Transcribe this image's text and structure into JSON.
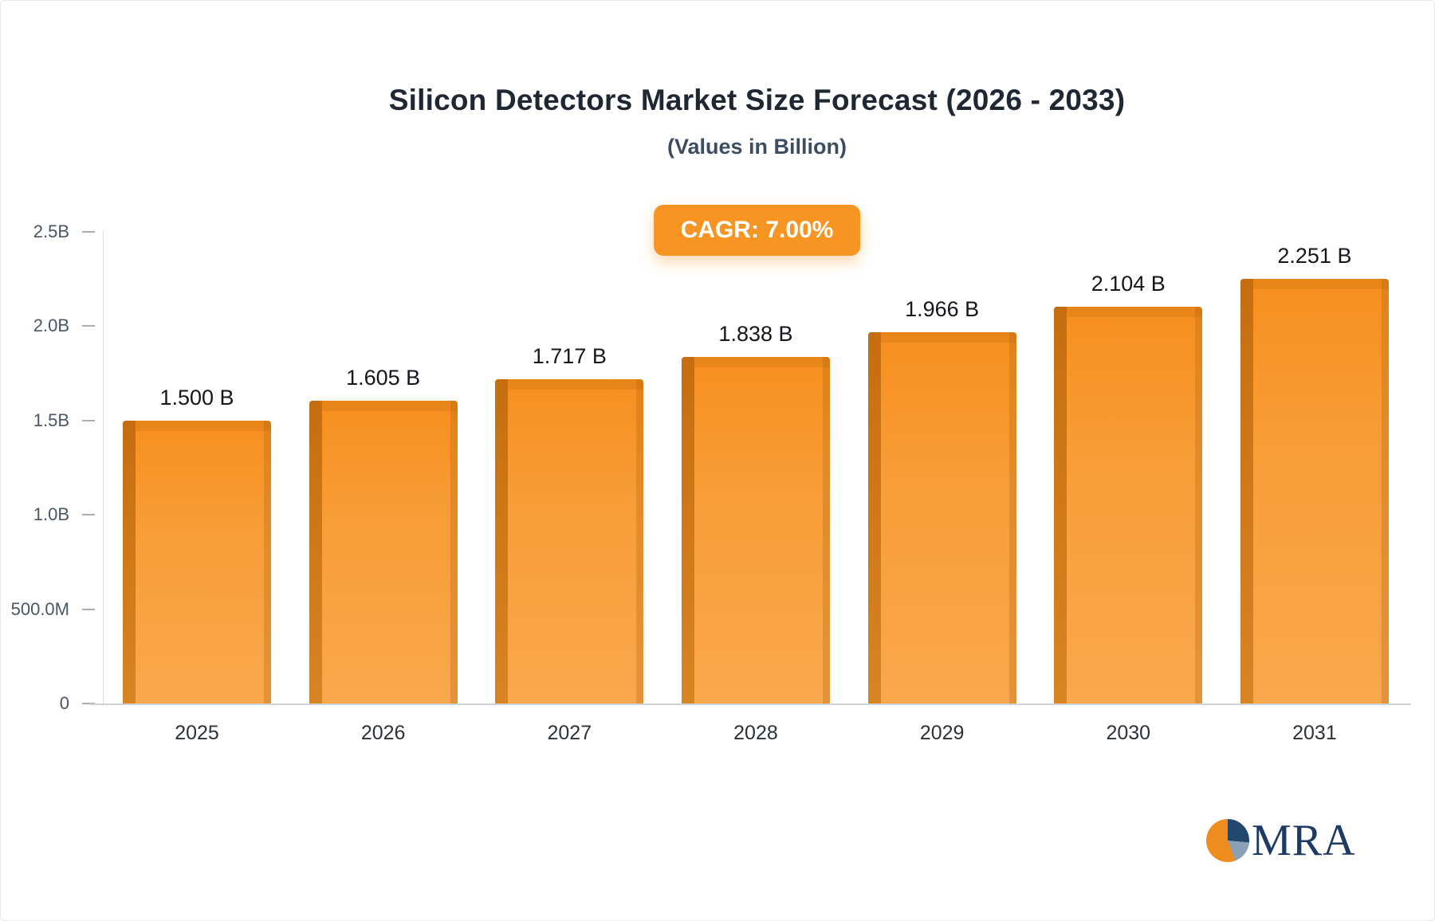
{
  "header": {
    "title": "Silicon Detectors Market Size Forecast (2026 - 2033)",
    "subtitle": "(Values in Billion)",
    "cagr_badge": "CAGR: 7.00%"
  },
  "chart_data": {
    "type": "bar",
    "title": "Silicon Detectors Market Size Forecast (2026 - 2033)",
    "subtitle": "(Values in Billion)",
    "cagr_label": "CAGR: 7.00%",
    "categories": [
      "2025",
      "2026",
      "2027",
      "2028",
      "2029",
      "2030",
      "2031"
    ],
    "values": [
      1.5,
      1.605,
      1.717,
      1.838,
      1.966,
      2.104,
      2.251
    ],
    "value_labels": [
      "1.500 B",
      "1.605 B",
      "1.717 B",
      "1.838 B",
      "1.966 B",
      "2.104 B",
      "2.251 B"
    ],
    "xlabel": "",
    "ylabel": "",
    "ylim": [
      0,
      2.5
    ],
    "y_ticks": [
      {
        "label": "2.5B",
        "value": 2.5
      },
      {
        "label": "2.0B",
        "value": 2.0
      },
      {
        "label": "1.5B",
        "value": 1.5
      },
      {
        "label": "1.0B",
        "value": 1.0
      },
      {
        "label": "500.0M",
        "value": 0.5
      },
      {
        "label": "0",
        "value": 0
      }
    ],
    "grid": false,
    "legend_position": "none",
    "bar_color": "#F7941E",
    "bar_side_color": "#C66E0F"
  },
  "logo": {
    "text": "MRA"
  },
  "colors": {
    "accent_orange": "#F79422",
    "title_text": "#1F2733",
    "logo_navy": "#1C3A63"
  }
}
